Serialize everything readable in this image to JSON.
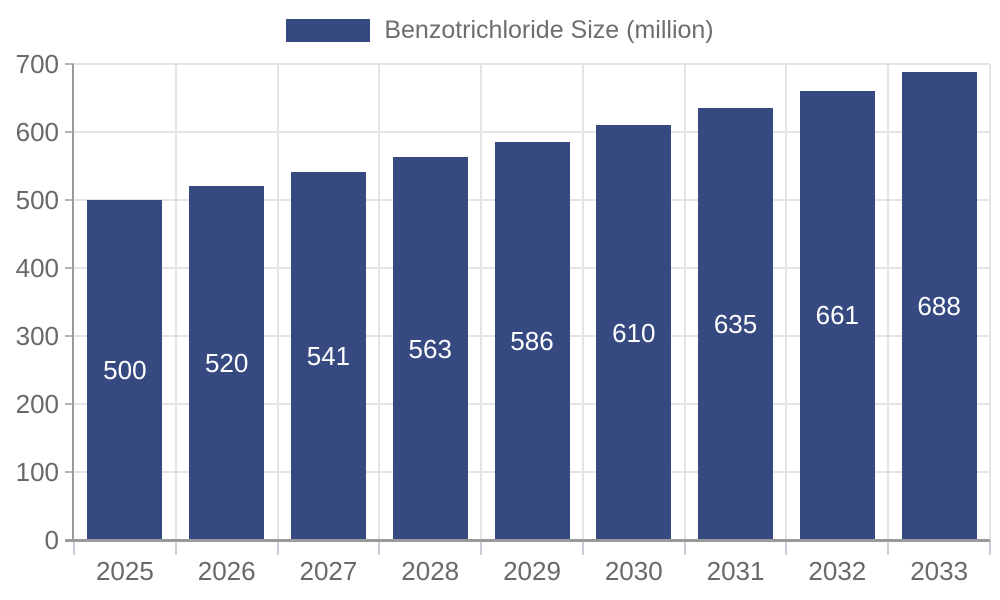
{
  "legend": {
    "label": "Benzotrichloride Size (million)"
  },
  "chart_data": {
    "type": "bar",
    "title": "",
    "legend": "Benzotrichloride Size (million)",
    "categories": [
      "2025",
      "2026",
      "2027",
      "2028",
      "2029",
      "2030",
      "2031",
      "2032",
      "2033"
    ],
    "values": [
      500,
      520,
      541,
      563,
      586,
      610,
      635,
      661,
      688
    ],
    "xlabel": "",
    "ylabel": "",
    "ylim": [
      0,
      700
    ],
    "yticks": [
      0,
      100,
      200,
      300,
      400,
      500,
      600,
      700
    ],
    "grid": true,
    "value_labels": "inside-center",
    "legend_position": "top-center"
  },
  "colors": {
    "bar": "#364a81",
    "legend_text": "#6e6e6e",
    "tick_text": "#696969",
    "value_text": "#ffffff",
    "gridline": "#e4e4e4",
    "axis_line": "#9a9a9a",
    "background": "#ffffff"
  }
}
